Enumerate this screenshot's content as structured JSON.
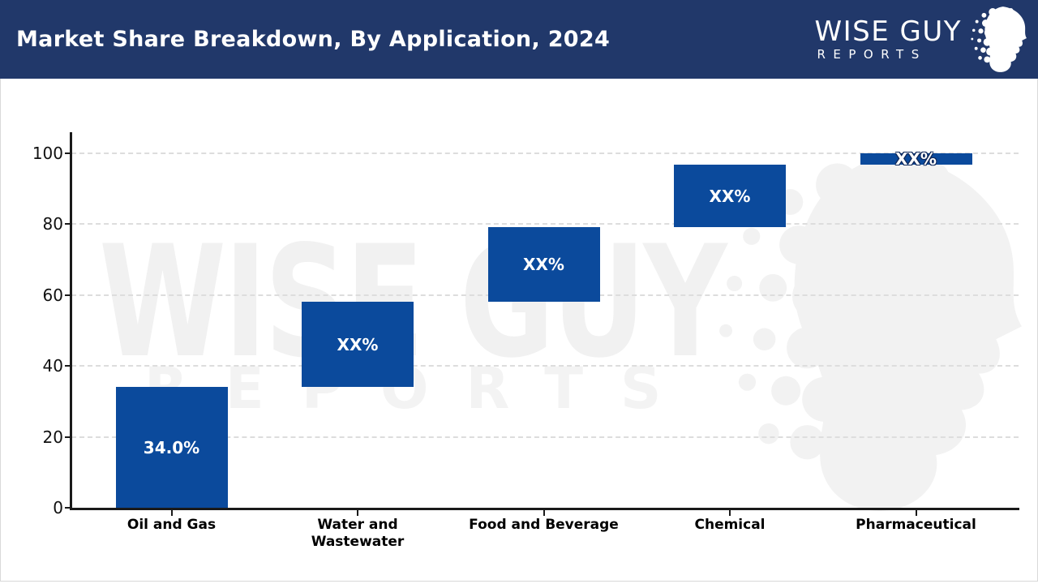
{
  "header": {
    "title": "Market Share Breakdown, By Application, 2024",
    "logo": {
      "line1": "WISE GUY",
      "line2": "REPORTS"
    }
  },
  "watermark": {
    "line1": "WISE GUY",
    "line2": "REPORTS"
  },
  "colors": {
    "header_bg": "#21386a",
    "bar_fill": "#0b4a9c",
    "bar_label": "#ffffff",
    "grid_line": "#dddddd",
    "axis_line": "#1a1a1a",
    "tick_label": "#111111",
    "watermark": "#f1f1f1",
    "frame_border": "#d9d9d9"
  },
  "chart_data": {
    "type": "bar",
    "subtype": "waterfall-floating-bars",
    "title": "Market Share Breakdown, By Application, 2024",
    "categories": [
      "Oil and Gas",
      "Water and\nWastewater",
      "Food and Beverage",
      "Chemical",
      "Pharmaceutical"
    ],
    "segments": [
      {
        "category": "Oil and Gas",
        "from": 0,
        "to": 34,
        "label": "34.0%"
      },
      {
        "category": "Water and Wastewater",
        "from": 34,
        "to": 58,
        "label": "XX%"
      },
      {
        "category": "Food and Beverage",
        "from": 58,
        "to": 79,
        "label": "XX%"
      },
      {
        "category": "Chemical",
        "from": 79,
        "to": 96.7,
        "label": "XX%"
      },
      {
        "category": "Pharmaceutical",
        "from": 96.7,
        "to": 100,
        "label": "XX%"
      }
    ],
    "xlabel": "",
    "ylabel": "",
    "ylim": [
      0,
      100
    ],
    "yticks": [
      0,
      20,
      40,
      60,
      80,
      100
    ],
    "grid": "horizontal-dashed",
    "legend": "none"
  }
}
